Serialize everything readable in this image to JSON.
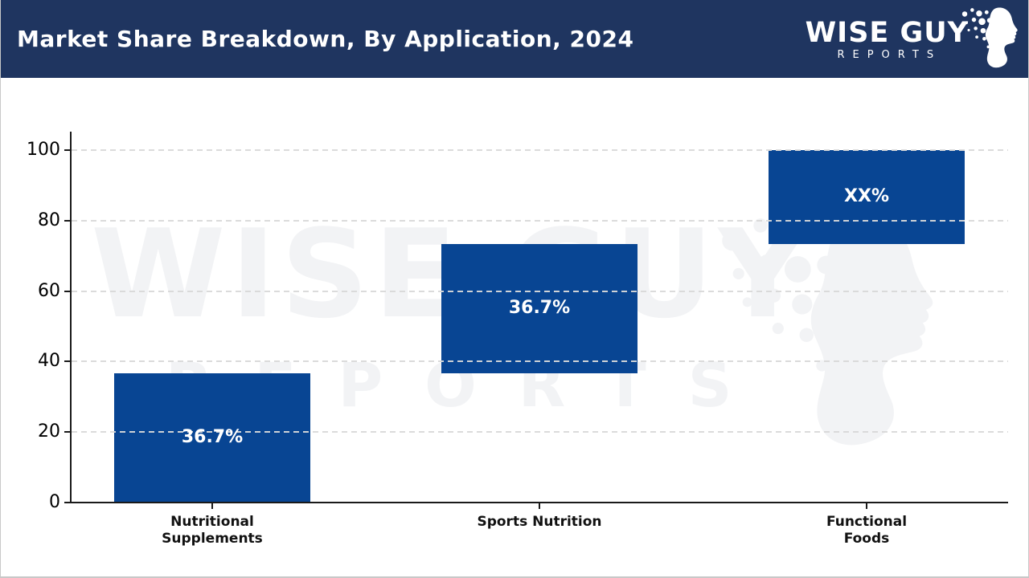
{
  "header": {
    "title": "Market Share Breakdown, By Application, 2024",
    "logo": {
      "line1": "WISE GUY",
      "line2": "REPORTS"
    }
  },
  "watermark": {
    "line1": "WISE GUY",
    "line2": "REPORTS"
  },
  "chart_data": {
    "type": "bar",
    "subtype": "floating-waterfall",
    "title": "Market Share Breakdown, By Application, 2024",
    "categories": [
      "Nutritional Supplements",
      "Sports Nutrition",
      "Functional Foods"
    ],
    "bars": [
      {
        "category": "Nutritional Supplements",
        "start": 0,
        "end": 36.7,
        "label": "36.7%"
      },
      {
        "category": "Sports Nutrition",
        "start": 36.7,
        "end": 73.4,
        "label": "36.7%"
      },
      {
        "category": "Functional Foods",
        "start": 73.4,
        "end": 100,
        "label": "XX%"
      }
    ],
    "xlabel": "",
    "ylabel": "",
    "ylim": [
      0,
      100
    ],
    "yticks": [
      0,
      20,
      40,
      60,
      80,
      100
    ],
    "grid": "horizontal-dashed",
    "legend": "none",
    "bar_color": "#084593",
    "bar_label_color": "#ffffff"
  },
  "colors": {
    "header_bg": "#1f3560",
    "bar": "#084593",
    "gridline": "#d9d9d9",
    "axis": "#1a1a1a",
    "watermark": "#f2f3f5",
    "page_border": "#c8c8c8"
  }
}
